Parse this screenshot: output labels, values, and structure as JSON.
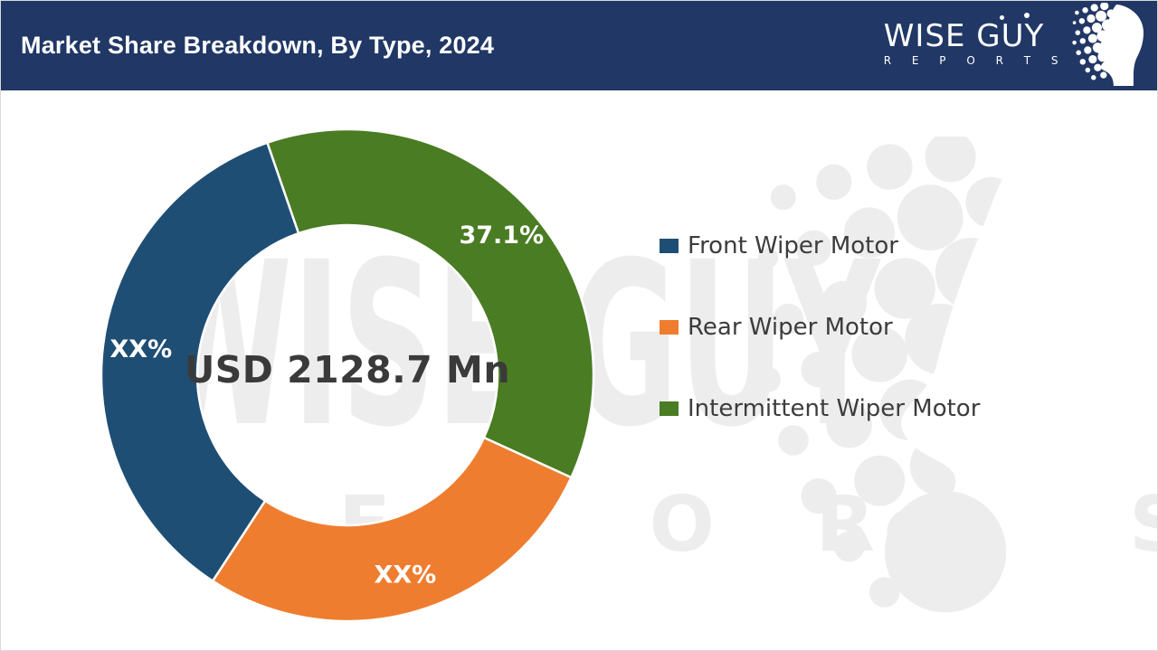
{
  "header": {
    "title": "Market Share Breakdown, By Type, 2024",
    "bg_color": "#213765",
    "logo": {
      "line1": "WISE GUY",
      "line2": "R E P O R T S"
    }
  },
  "watermark": {
    "line1": "WISE GUY",
    "line2": "R E P O R T S"
  },
  "chart_data": {
    "type": "donut",
    "title": "Market Share Breakdown, By Type, 2024",
    "center_label": "USD 2128.7 Mn",
    "start_angle_deg": -19,
    "direction": "clockwise",
    "inner_radius_ratio": 0.61,
    "legend_position": "right",
    "segments": [
      {
        "label": "Intermittent Wiper Motor",
        "display_value": "37.1%",
        "value": 37.1,
        "color": "#4a7c23"
      },
      {
        "label": "Rear Wiper Motor",
        "display_value": "XX%",
        "value": 27.4,
        "color": "#ef7d30"
      },
      {
        "label": "Front Wiper Motor",
        "display_value": "XX%",
        "value": 35.5,
        "color": "#1f4e74"
      }
    ]
  },
  "legend": {
    "items": [
      {
        "label": "Front Wiper Motor",
        "color": "#1f4e74"
      },
      {
        "label": "Rear Wiper Motor",
        "color": "#ef7d30"
      },
      {
        "label": "Intermittent Wiper Motor",
        "color": "#4a7c23"
      }
    ]
  }
}
